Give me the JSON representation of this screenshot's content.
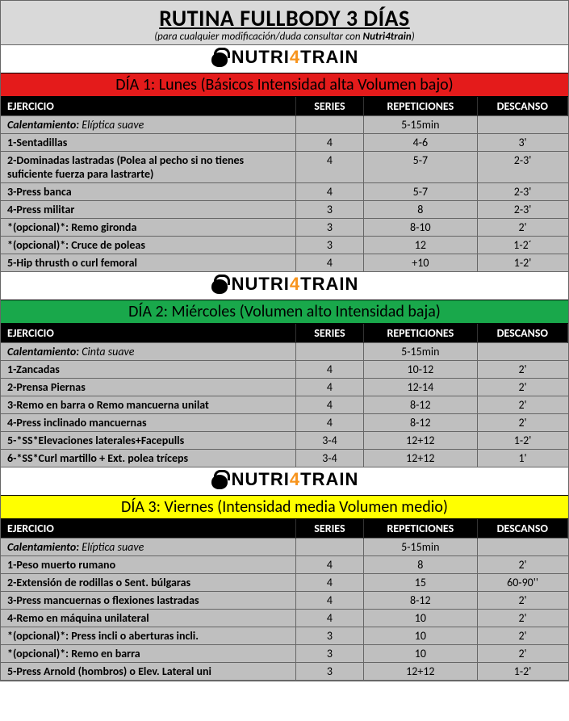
{
  "title": "RUTINA FULLBODY 3 DÍAS",
  "subtitle_prefix": "(para cualquier modificación/duda consultar con ",
  "subtitle_brand": "Nutri4train",
  "subtitle_suffix": ")",
  "logo_text_a": "NUTRI",
  "logo_text_b": "4",
  "logo_text_c": "TRAIN",
  "columns": {
    "c1": "EJERCICIO",
    "c2": "SERIES",
    "c3": "REPETICIONES",
    "c4": "DESCANSO"
  },
  "colors": {
    "day1_bg": "#e41b1b",
    "day2_bg": "#19a84b",
    "day3_bg": "#ffff00",
    "header_bg": "#000000",
    "header_fg": "#ffffff",
    "row_bg": "#bfbfbf",
    "title_bg": "#d9d9d9",
    "border": "#666666",
    "logo_accent": "#f7941d"
  },
  "days": [
    {
      "title": "DÍA 1: Lunes (Básicos Intensidad alta Volumen bajo)",
      "rows": [
        {
          "warmup": true,
          "ej_label": "Calentamiento:",
          "ej": " Elíptica suave",
          "s": "",
          "r": "5-15min",
          "d": ""
        },
        {
          "ej": "1-Sentadillas",
          "s": "4",
          "r": "4-6",
          "d": "3'"
        },
        {
          "ej": "2-Dominadas lastradas (Polea al pecho si no tienes suficiente fuerza para lastrarte)",
          "s": "4",
          "r": "5-7",
          "d": "2-3'"
        },
        {
          "ej": "3-Press banca",
          "s": "4",
          "r": "5-7",
          "d": "2-3'"
        },
        {
          "ej": "4-Press militar",
          "s": "3",
          "r": "8",
          "d": "2-3'"
        },
        {
          "ej": "*(opcional)*: Remo gironda",
          "s": "3",
          "r": "8-10",
          "d": "2'"
        },
        {
          "ej": "*(opcional)*: Cruce de poleas",
          "s": "3",
          "r": "12",
          "d": "1-2´"
        },
        {
          "ej": "5-Hip thrusth o curl femoral",
          "s": "4",
          "r": "+10",
          "d": "1-2'"
        }
      ]
    },
    {
      "title": "DÍA 2: Miércoles (Volumen alto Intensidad baja)",
      "rows": [
        {
          "warmup": true,
          "ej_label": "Calentamiento:",
          "ej": " Cinta suave",
          "s": "",
          "r": "5-15min",
          "d": ""
        },
        {
          "ej": "1-Zancadas",
          "s": "4",
          "r": "10-12",
          "d": "2'"
        },
        {
          "ej": "2-Prensa Piernas",
          "s": "4",
          "r": "12-14",
          "d": "2'"
        },
        {
          "ej": "3-Remo en barra o Remo mancuerna unilat",
          "s": "4",
          "r": "8-12",
          "d": "2'"
        },
        {
          "ej": "4-Press inclinado mancuernas",
          "s": "4",
          "r": "8-12",
          "d": "2'"
        },
        {
          "ej": "5-*SS*Elevaciones laterales+Facepulls",
          "s": "3-4",
          "r": "12+12",
          "d": "1-2'"
        },
        {
          "ej": "6-*SS*Curl martillo + Ext. polea tríceps",
          "s": "3-4",
          "r": "12+12",
          "d": "1'"
        }
      ]
    },
    {
      "title": "DÍA 3: Viernes (Intensidad media Volumen medio)",
      "rows": [
        {
          "warmup": true,
          "ej_label": "Calentamiento:",
          "ej": " Elíptica suave",
          "s": "",
          "r": "5-15min",
          "d": ""
        },
        {
          "ej": "1-Peso muerto rumano",
          "s": "4",
          "r": "8",
          "d": "2'"
        },
        {
          "ej": "2-Extensión de rodillas o Sent. búlgaras",
          "s": "4",
          "r": "15",
          "d": "60-90''"
        },
        {
          "ej": "3-Press mancuernas o flexiones lastradas",
          "s": "4",
          "r": "8-12",
          "d": "2'"
        },
        {
          "ej": "4-Remo en máquina unilateral",
          "s": "4",
          "r": "10",
          "d": "2'"
        },
        {
          "ej": "*(opcional)*: Press incli o aberturas incli.",
          "s": "3",
          "r": "10",
          "d": "2'"
        },
        {
          "ej": "*(opcional)*: Remo en barra",
          "s": "3",
          "r": "10",
          "d": "2'"
        },
        {
          "ej": "5-Press Arnold (hombros) o Elev. Lateral uni",
          "s": "3",
          "r": "12+12",
          "d": "1-2'"
        }
      ]
    }
  ]
}
